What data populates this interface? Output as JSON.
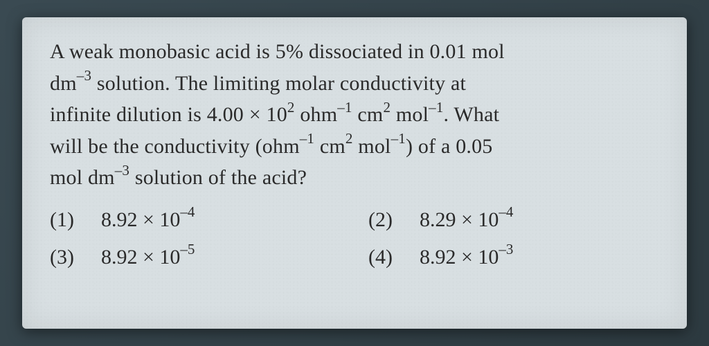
{
  "card": {
    "background_color": "#d8dfe2",
    "text_color": "#2a2a2a",
    "font_family": "Times New Roman",
    "font_size_pt": 30
  },
  "question": {
    "line1": "A weak monobasic acid is 5% dissociated in 0.01 mol",
    "line2_a": "dm",
    "line2_sup": "–3",
    "line2_b": " solution. The limiting molar conductivity at",
    "line3_a": "infinite dilution is 4.00 × 10",
    "line3_sup1": "2",
    "line3_b": " ohm",
    "line3_sup2": "–1",
    "line3_c": " cm",
    "line3_sup3": "2",
    "line3_d": " mol",
    "line3_sup4": "–1",
    "line3_e": ". What",
    "line4_a": "will be the conductivity (ohm",
    "line4_sup1": "–1",
    "line4_b": " cm",
    "line4_sup2": "2",
    "line4_c": " mol",
    "line4_sup3": "–1",
    "line4_d": ") of a 0.05",
    "line5_a": "mol dm",
    "line5_sup": "–3",
    "line5_b": " solution of the acid?"
  },
  "options": [
    {
      "num": "(1)",
      "val_a": "8.92 × 10",
      "val_sup": "–4"
    },
    {
      "num": "(2)",
      "val_a": "8.29 × 10",
      "val_sup": "–4"
    },
    {
      "num": "(3)",
      "val_a": "8.92 × 10",
      "val_sup": "–5"
    },
    {
      "num": "(4)",
      "val_a": "8.92 × 10",
      "val_sup": "–3"
    }
  ]
}
